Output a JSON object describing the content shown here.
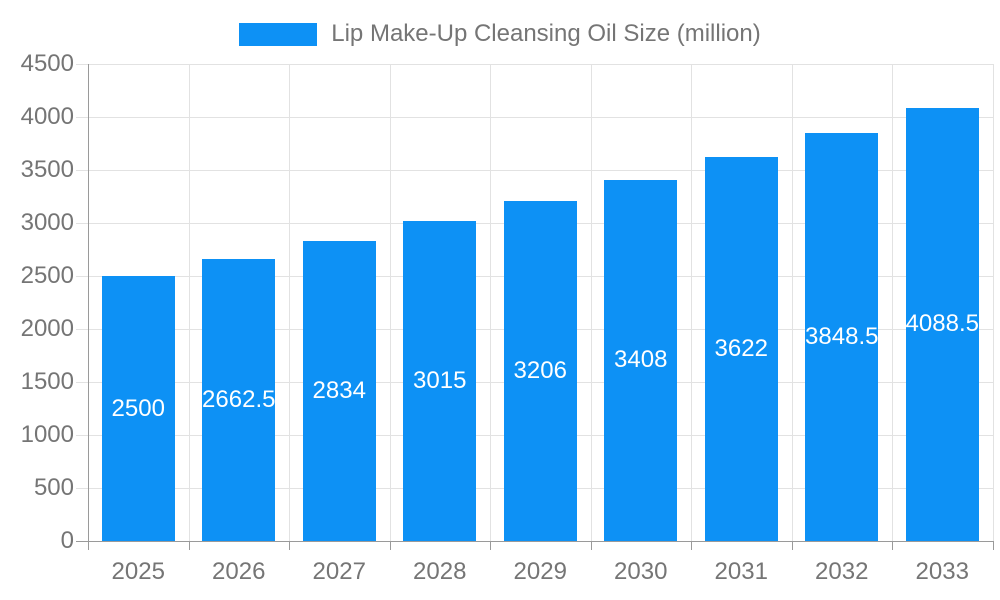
{
  "legend": {
    "label": "Lip Make-Up Cleansing Oil Size (million)"
  },
  "colors": {
    "bar": "#0D91F5",
    "axis_text": "#757575",
    "value_label_text": "#ffffff",
    "grid_line": "#e2e2e2",
    "axis_line": "#9a9a9a",
    "background": "#ffffff"
  },
  "chart_data": {
    "type": "bar",
    "title": "Lip Make-Up Cleansing Oil Size (million)",
    "categories": [
      "2025",
      "2026",
      "2027",
      "2028",
      "2029",
      "2030",
      "2031",
      "2032",
      "2033"
    ],
    "values": [
      2500,
      2662.5,
      2834,
      3015,
      3206,
      3408,
      3622,
      3848.5,
      4088.5
    ],
    "xlabel": "",
    "ylabel": "",
    "ylim": [
      0,
      4500
    ],
    "y_ticks": [
      0,
      500,
      1000,
      1500,
      2000,
      2500,
      3000,
      3500,
      4000,
      4500
    ],
    "grid": true,
    "legend_position": "top-center",
    "bar_label_position": "center"
  }
}
